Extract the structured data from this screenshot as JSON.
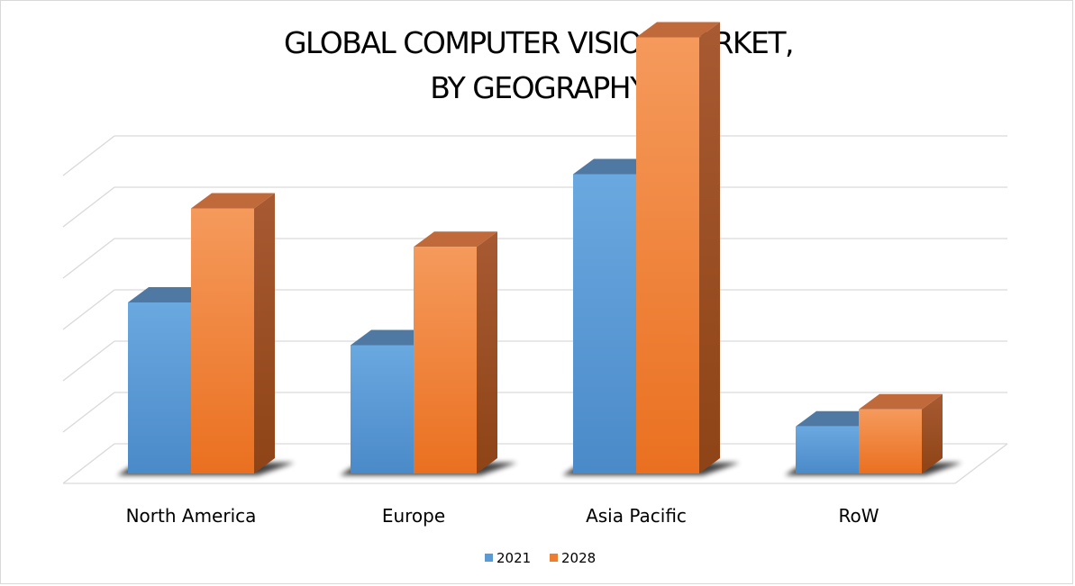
{
  "chart_data": {
    "type": "bar",
    "title_lines": [
      "GLOBAL COMPUTER VISION MARKET,",
      "BY GEOGRAPHY"
    ],
    "categories": [
      "North America",
      "Europe",
      "Asia Pacific",
      "RoW"
    ],
    "series": [
      {
        "name": "2021",
        "values": [
          2.0,
          1.5,
          3.5,
          0.55
        ],
        "color": "#5b9bd5"
      },
      {
        "name": "2028",
        "values": [
          3.1,
          2.65,
          5.1,
          0.75
        ],
        "color": "#ed7d31"
      }
    ],
    "ylim": [
      0,
      6.5
    ],
    "grid": true,
    "legend_position": "bottom",
    "view": "3d"
  }
}
